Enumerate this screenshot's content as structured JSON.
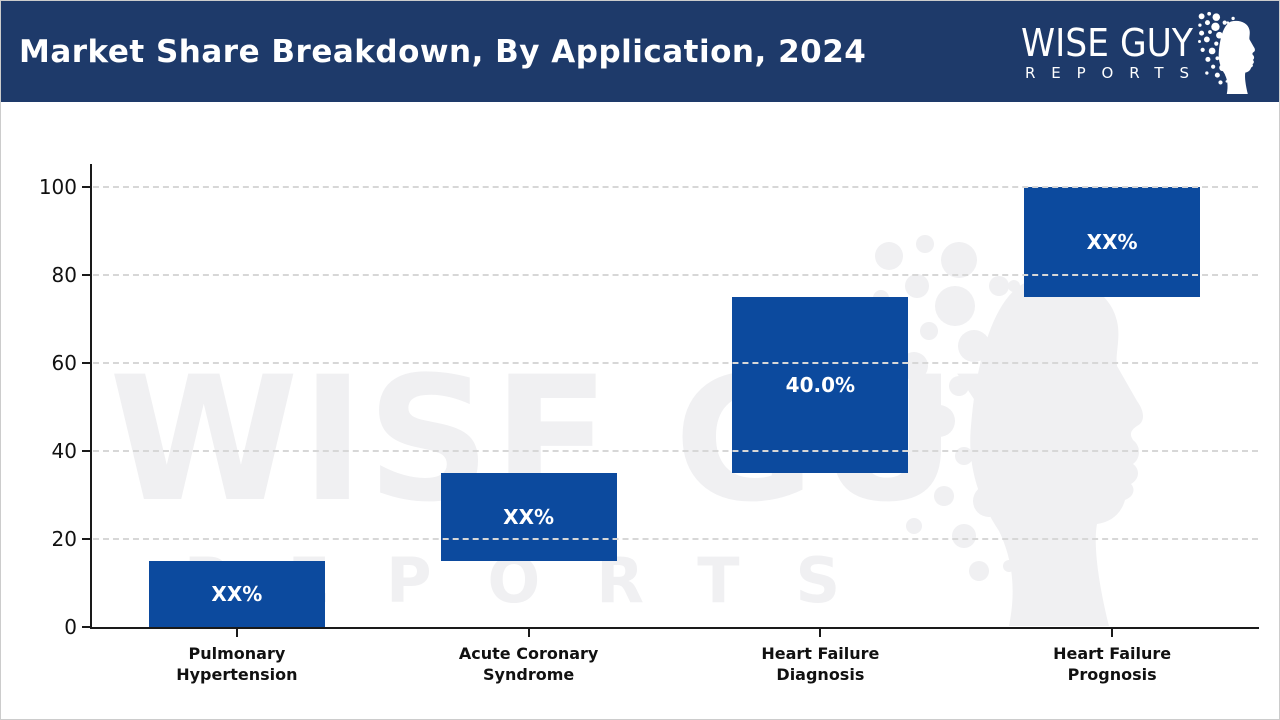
{
  "header": {
    "title": "Market Share Breakdown, By Application, 2024",
    "logo": {
      "wordmark": "WISE GUY",
      "subtext": "REPORTS"
    }
  },
  "watermark": {
    "wordmark": "WISE GUY",
    "subtext": "REPORTS"
  },
  "chart_data": {
    "type": "bar",
    "subtype": "waterfall-floating-bars",
    "title": "Market Share Breakdown, By Application, 2024",
    "categories": [
      [
        "Pulmonary",
        "Hypertension"
      ],
      [
        "Acute Coronary",
        "Syndrome"
      ],
      [
        "Heart Failure",
        "Diagnosis"
      ],
      [
        "Heart Failure",
        "Prognosis"
      ]
    ],
    "bars": [
      {
        "start": 0,
        "end": 15,
        "label": "XX%"
      },
      {
        "start": 15,
        "end": 35,
        "label": "XX%"
      },
      {
        "start": 35,
        "end": 75,
        "label": "40.0%"
      },
      {
        "start": 75,
        "end": 100,
        "label": "XX%"
      }
    ],
    "yticks": [
      0,
      20,
      40,
      60,
      80,
      100
    ],
    "ylim": [
      0,
      105
    ],
    "xlabel": "",
    "ylabel": "",
    "grid": "dashed-horizontal",
    "legend": "none",
    "colors": {
      "bar": "#0c4a9e",
      "bar_label": "#ffffff",
      "header_bg": "#1e3a6a",
      "gridline": "#d7d7d7",
      "axis": "#1a1a1a",
      "watermark": "#f0f0f2"
    }
  }
}
